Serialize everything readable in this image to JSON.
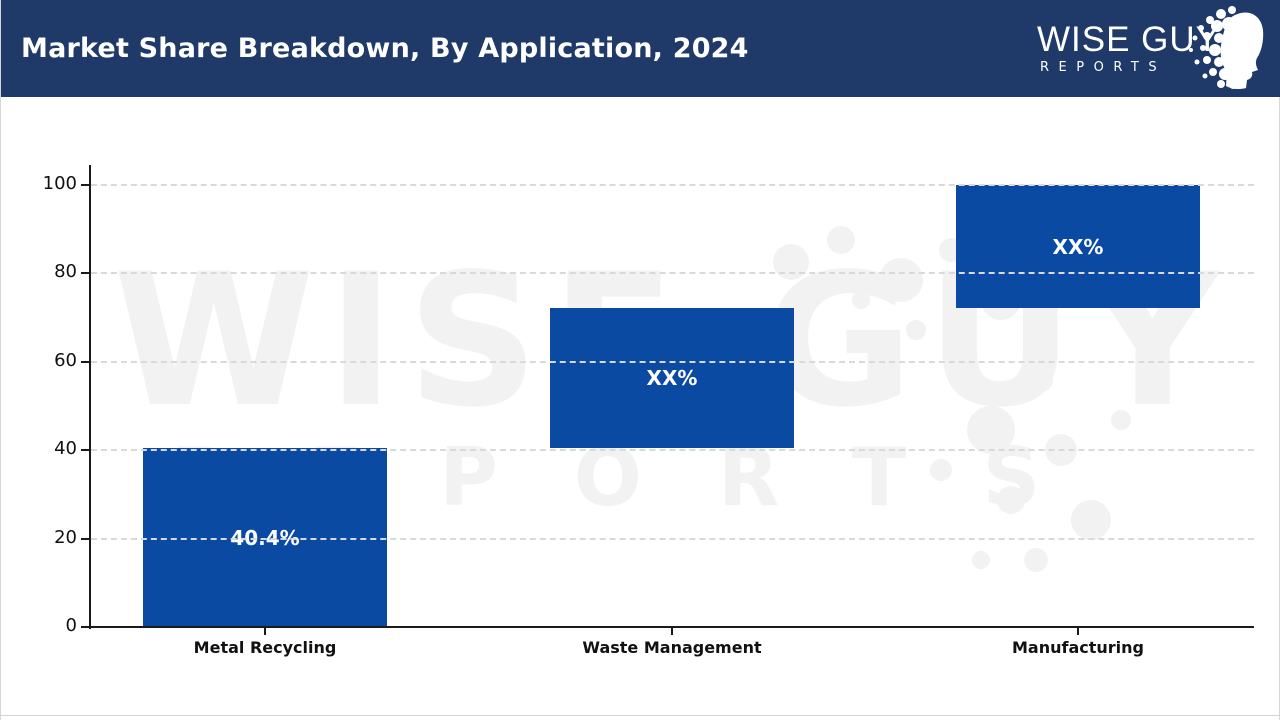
{
  "header": {
    "title": "Market Share Breakdown, By Application, 2024",
    "logo": {
      "line1": "WISE GUY",
      "line2": "REPORTS"
    }
  },
  "watermark": {
    "line1": "WISE GUY",
    "line2": "REPORTS"
  },
  "colors": {
    "header_bg": "#1f3a68",
    "bar": "#0b4aa3",
    "grid": "#d9d9d9",
    "axis": "#1a1a1a",
    "watermark": "#f2f2f2",
    "bar_label": "#ffffff"
  },
  "chart_data": {
    "type": "bar",
    "subtype": "floating-waterfall",
    "title": "Market Share Breakdown, By Application, 2024",
    "categories": [
      "Metal Recycling",
      "Waste Management",
      "Manufacturing"
    ],
    "segments": [
      {
        "category": "Metal Recycling",
        "start": 0,
        "end": 40.4,
        "label": "40.4%"
      },
      {
        "category": "Waste Management",
        "start": 40.4,
        "end": 72.1,
        "label": "XX%"
      },
      {
        "category": "Manufacturing",
        "start": 72.1,
        "end": 100,
        "label": "XX%"
      }
    ],
    "xlabel": "",
    "ylabel": "",
    "ylim": [
      0,
      100
    ],
    "yticks": [
      0,
      20,
      40,
      60,
      80,
      100
    ],
    "grid": "horizontal-dashed-over-bars",
    "legend": "none"
  }
}
